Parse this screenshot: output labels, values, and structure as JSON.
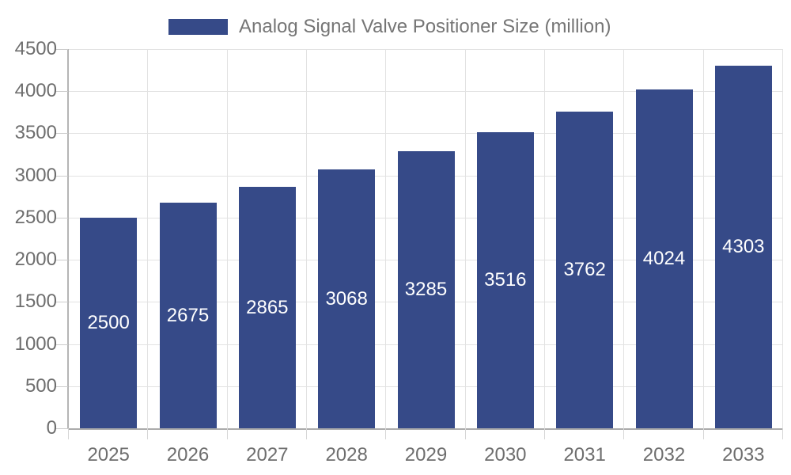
{
  "legend": {
    "label": "Analog Signal Valve Positioner Size (million)"
  },
  "chart_data": {
    "type": "bar",
    "title": "Analog Signal Valve Positioner Size (million)",
    "categories": [
      "2025",
      "2026",
      "2027",
      "2028",
      "2029",
      "2030",
      "2031",
      "2032",
      "2033"
    ],
    "values": [
      2500,
      2675,
      2865,
      3068,
      3285,
      3516,
      3762,
      4024,
      4303
    ],
    "bar_labels": [
      "2500",
      "2675",
      "2865",
      "3068",
      "3285",
      "3516",
      "3762",
      "4024",
      "4303"
    ],
    "xlabel": "",
    "ylabel": "",
    "ylim": [
      0,
      4500
    ],
    "ytick_step": 500,
    "ytick_labels": [
      "0",
      "500",
      "1000",
      "1500",
      "2000",
      "2500",
      "3000",
      "3500",
      "4000",
      "4500"
    ],
    "grid": true,
    "legend_position": "top-center",
    "colors": {
      "bar": "#364A88",
      "bar_label": "#FFFFFF",
      "tick_label": "#6E6E6E",
      "legend_text": "#757575",
      "gridline": "#E2E2E2",
      "y_axis_line": "#B5B5B5",
      "x_axis_line": "#ABABAB",
      "y_tick_mark": "#CCCCCC",
      "x_tick_mark": "#D6D6D6",
      "background": "#FFFFFF"
    }
  }
}
